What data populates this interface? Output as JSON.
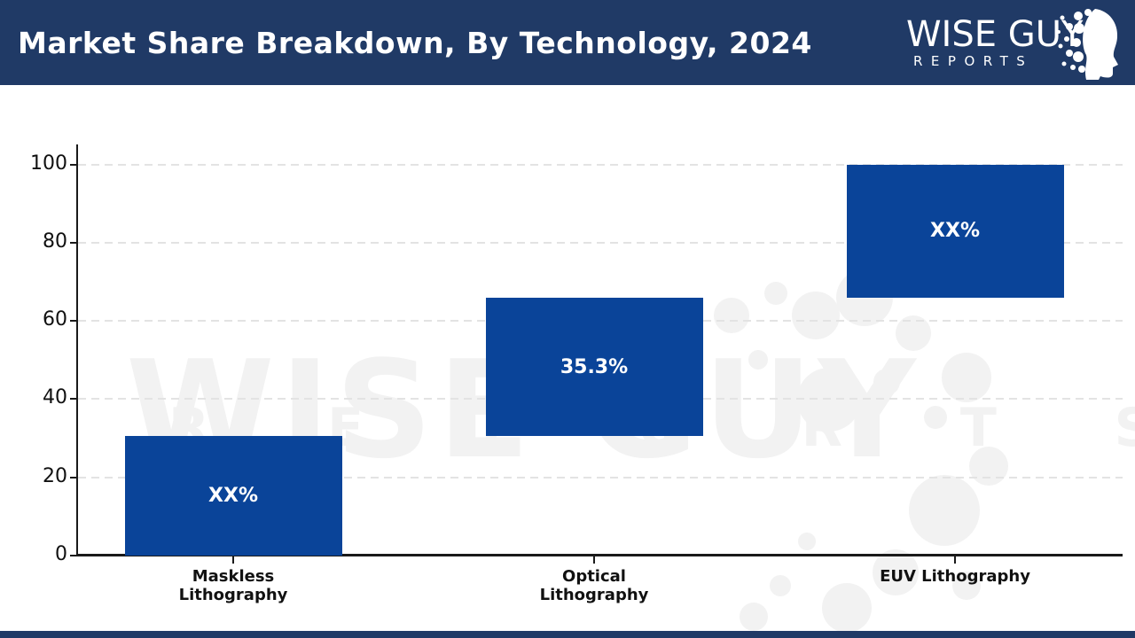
{
  "header": {
    "title": "Market Share Breakdown, By Technology, 2024",
    "logo": {
      "line1": "WISE GUY",
      "line2": "R E P O R T S"
    }
  },
  "watermark": {
    "line1": "WISE GUY",
    "line2": "REPORTS"
  },
  "colors": {
    "header_bg": "#203a66",
    "bar": "#0a4499",
    "axis": "#1a1a1a",
    "grid": "#e3e3e3",
    "watermark": "#f2f2f2",
    "title_text": "#ffffff"
  },
  "chart_data": {
    "type": "bar",
    "subtype": "floating-waterfall",
    "title": "Market Share Breakdown, By Technology, 2024",
    "categories": [
      {
        "lines": [
          "Maskless",
          "Lithography"
        ]
      },
      {
        "lines": [
          "Optical",
          "Lithography"
        ]
      },
      {
        "lines": [
          "EUV Lithography"
        ]
      }
    ],
    "bars": [
      {
        "label": "XX%",
        "base": 0,
        "top": 30.5,
        "value": 30.5
      },
      {
        "label": "35.3%",
        "base": 30.5,
        "top": 65.8,
        "value": 35.3
      },
      {
        "label": "XX%",
        "base": 65.8,
        "top": 100,
        "value": 34.2
      }
    ],
    "ylabel": "",
    "xlabel": "",
    "ylim": [
      0,
      104.5
    ],
    "yticks": [
      0,
      20,
      40,
      60,
      80,
      100
    ],
    "grid": "horizontal-dashed",
    "legend": "none"
  }
}
